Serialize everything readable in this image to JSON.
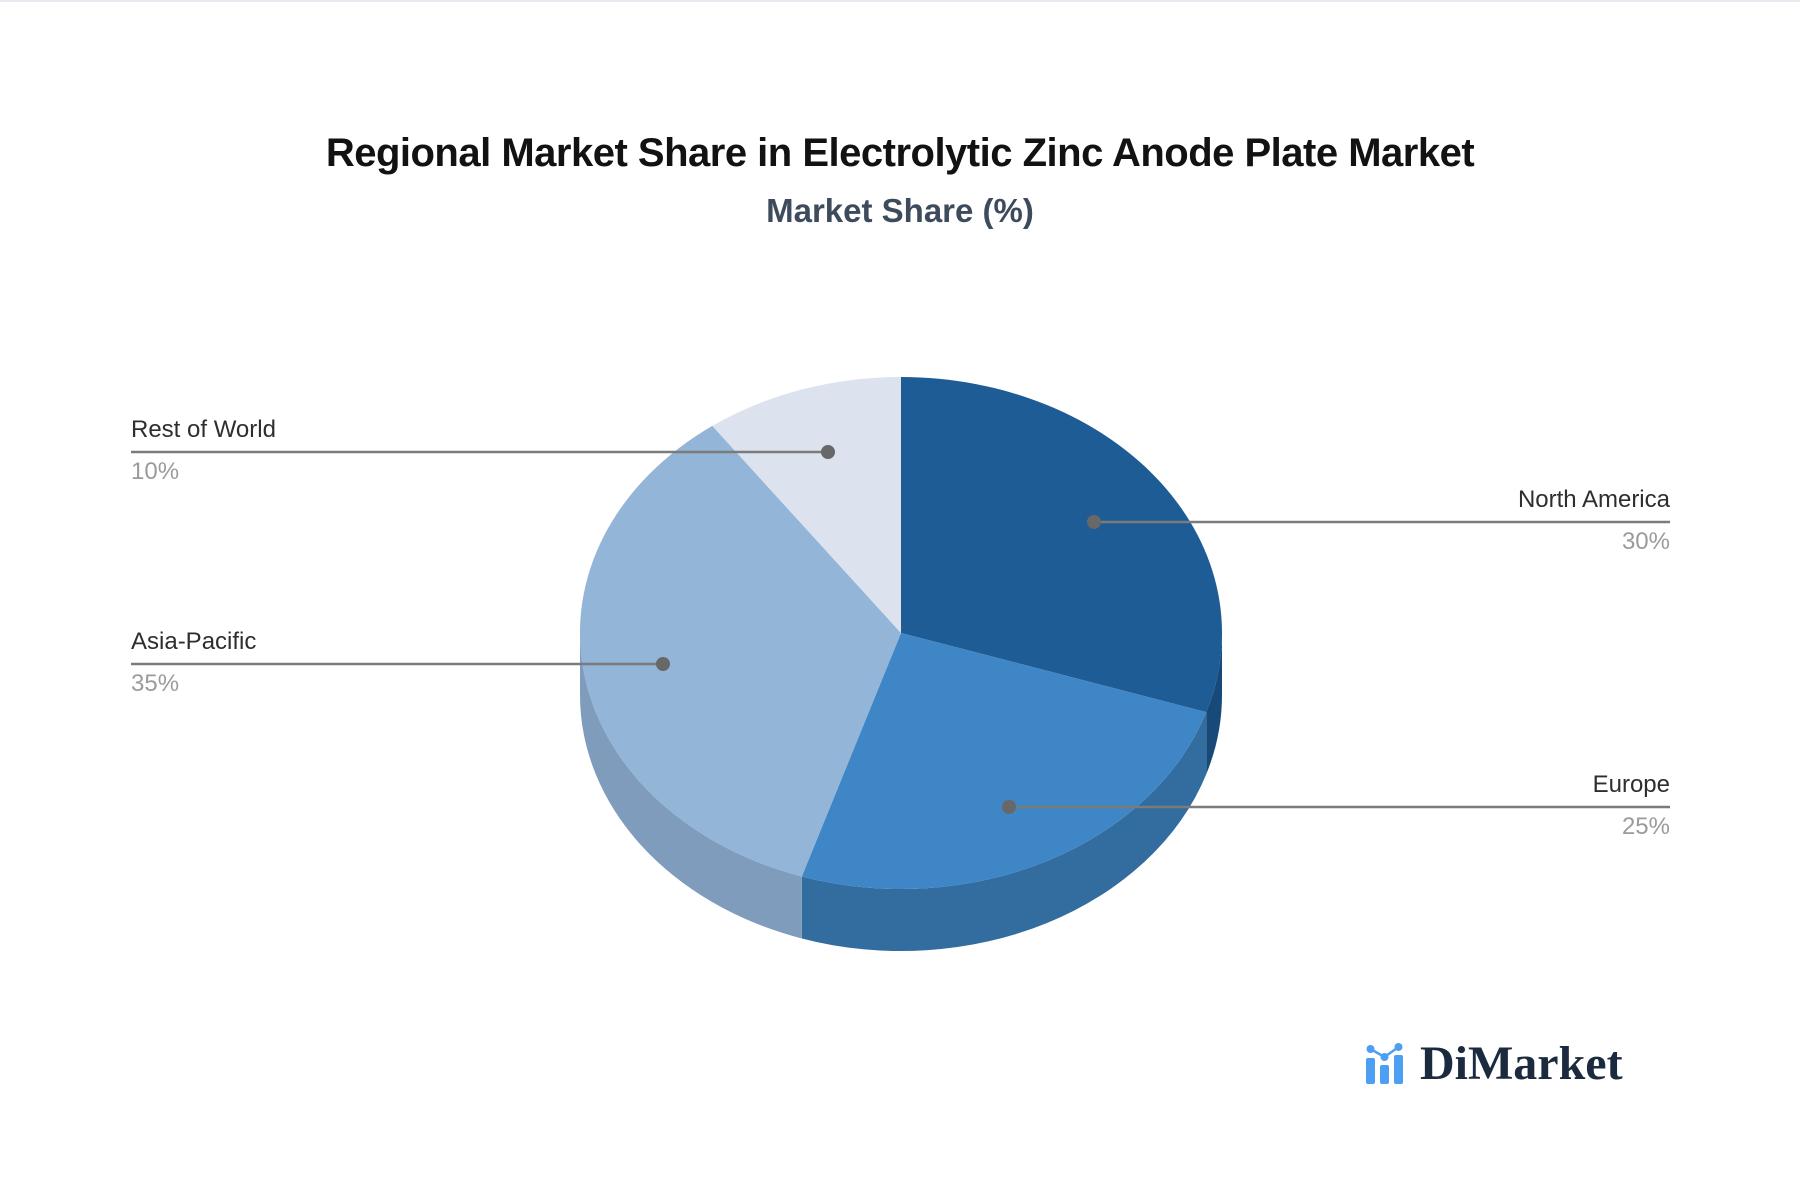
{
  "title": "Regional Market Share in Electrolytic Zinc Anode Plate Market",
  "subtitle": "Market Share (%)",
  "chart_data": {
    "type": "pie",
    "style": "3d",
    "title": "Regional Market Share in Electrolytic Zinc Anode Plate Market",
    "subtitle": "Market Share (%)",
    "unit": "%",
    "direction": "clockwise",
    "start_angle_deg": -90,
    "legend_position": "callout-labels",
    "series": [
      {
        "label": "North America",
        "value": 30,
        "display": "30%",
        "color": "#1e5c95",
        "side_color": "#174a78"
      },
      {
        "label": "Europe",
        "value": 25,
        "display": "25%",
        "color": "#3e86c6",
        "side_color": "#336c9f"
      },
      {
        "label": "Asia-Pacific",
        "value": 35,
        "display": "35%",
        "color": "#93b5d8",
        "side_color": "#7f9cbc"
      },
      {
        "label": "Rest of World",
        "value": 10,
        "display": "10%",
        "color": "#dce3ee",
        "side_color": "#c7cfdd"
      }
    ]
  },
  "branding": {
    "logo_text": "DiMarket",
    "logo_icon": "bar-chart-icon",
    "logo_icon_color": "#4d9ff3",
    "logo_text_color": "#1b2a3e"
  },
  "colors": {
    "leader_line": "#7b7b7b",
    "leader_dot": "#686868",
    "title_text": "#121212",
    "subtitle_text": "#3d4b5c",
    "label_text": "#2e2e2e",
    "value_text": "#9b9b9b"
  }
}
